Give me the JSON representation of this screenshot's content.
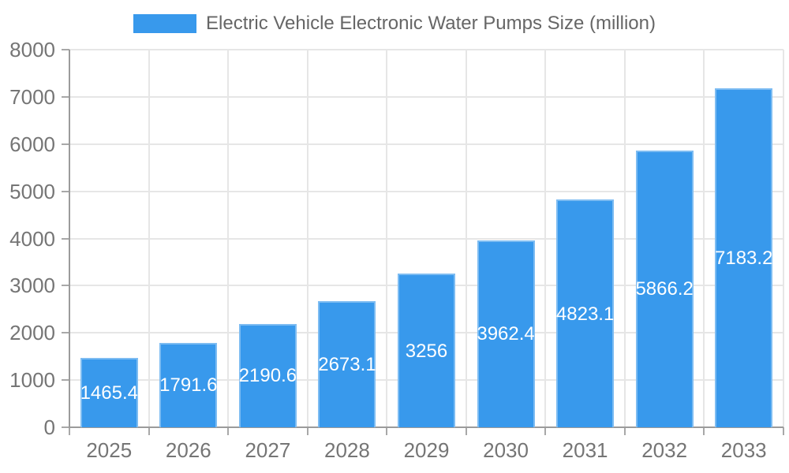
{
  "chart_data": {
    "type": "bar",
    "title": "Electric Vehicle Electronic Water Pumps Size (million)",
    "xlabel": "",
    "ylabel": "",
    "categories": [
      "2025",
      "2026",
      "2027",
      "2028",
      "2029",
      "2030",
      "2031",
      "2032",
      "2033"
    ],
    "values": [
      1465.4,
      1791.6,
      2190.6,
      2673.1,
      3256,
      3962.4,
      4823.1,
      5866.2,
      7183.2
    ],
    "value_labels": [
      "1465.4",
      "1791.6",
      "2190.6",
      "2673.1",
      "3256",
      "3962.4",
      "4823.1",
      "5866.2",
      "7183.2"
    ],
    "ylim": [
      0,
      8000
    ],
    "ytick_step": 1000,
    "yticks": [
      0,
      1000,
      2000,
      3000,
      4000,
      5000,
      6000,
      7000,
      8000
    ],
    "legend_position": "top-center",
    "grid": true,
    "data_label_position": "inside-center",
    "colors": {
      "bar": "#3899ec",
      "grid": "#e6e6e6",
      "axis": "#9b9b9b",
      "tick_mark": "#a8a8a8",
      "tick_text": "#757575",
      "legend_text": "#666666",
      "value_text": "#ffffff",
      "background": "#ffffff"
    }
  }
}
